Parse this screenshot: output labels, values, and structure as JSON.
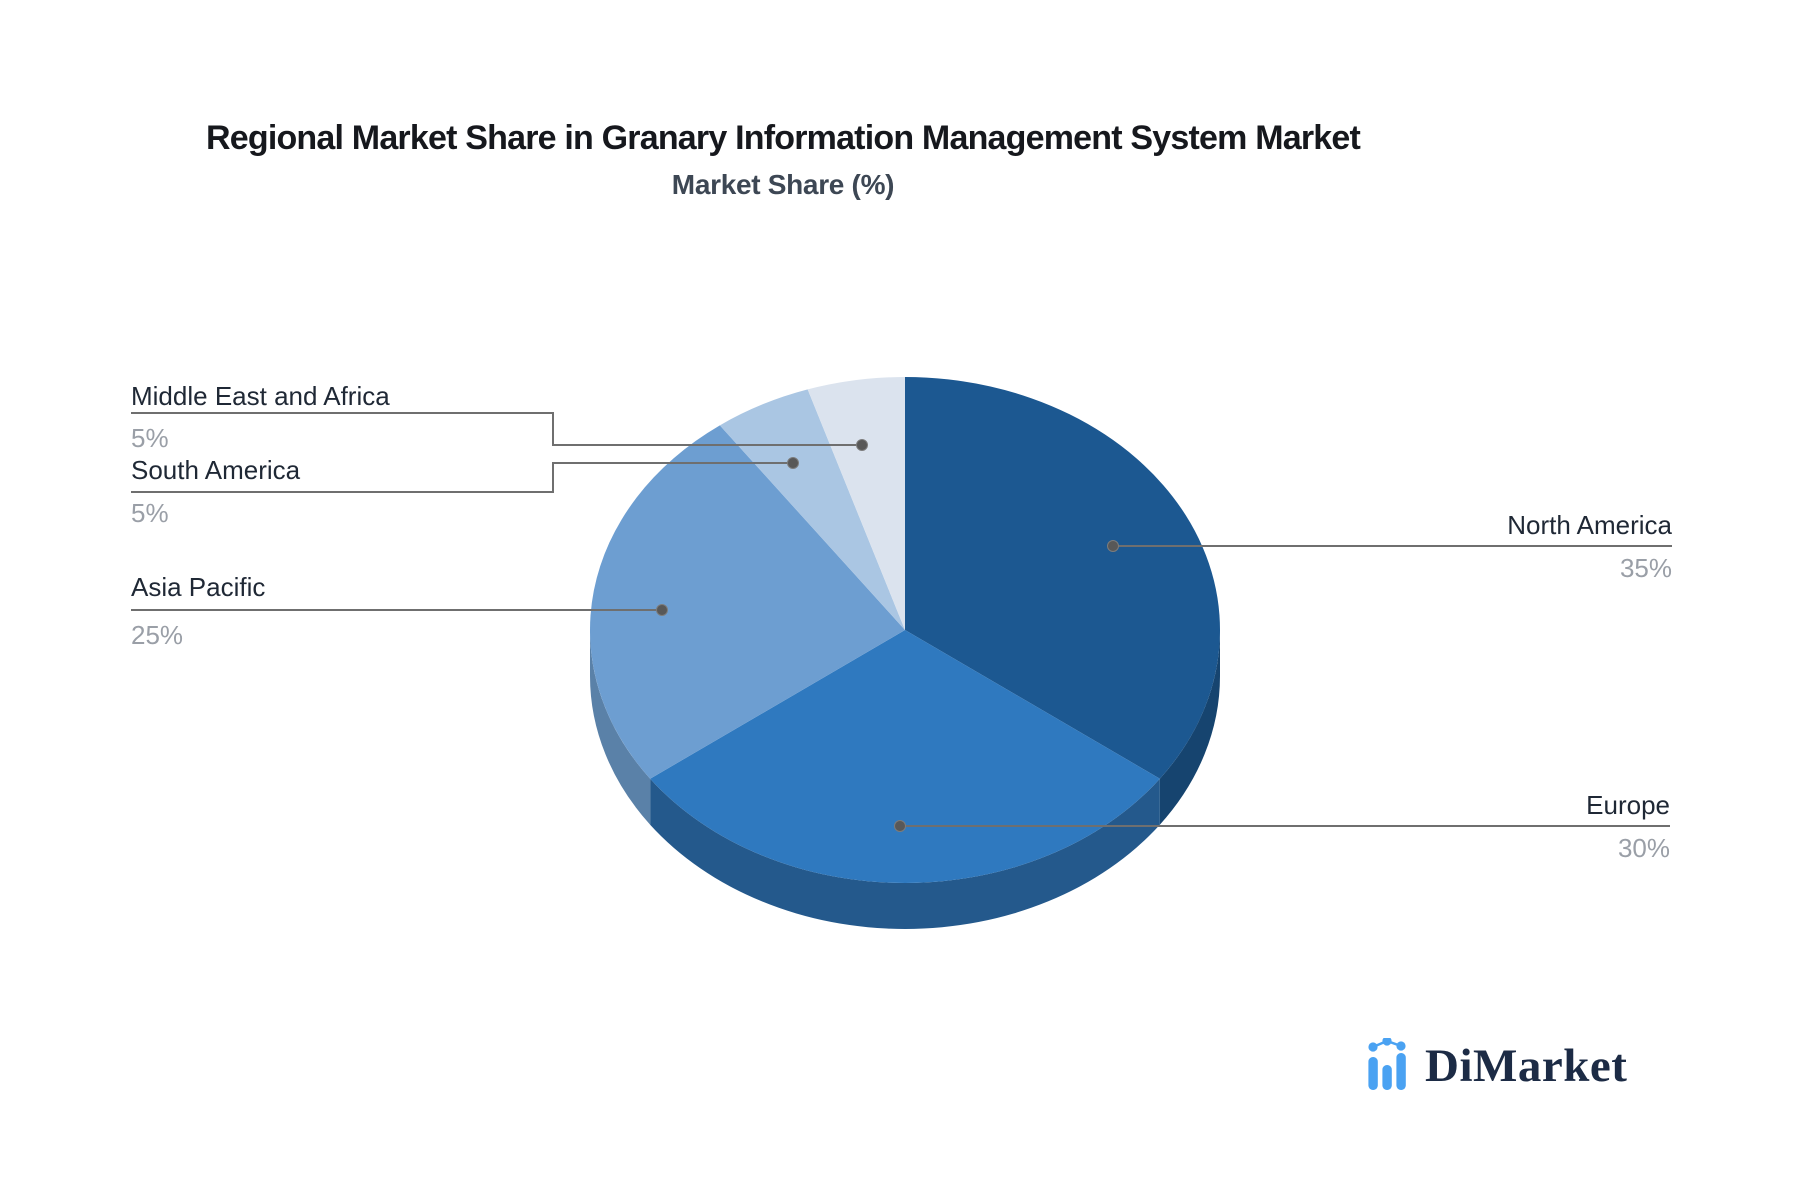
{
  "title": "Regional Market Share in Granary Information Management System Market",
  "subtitle": "Market Share (%)",
  "logo": {
    "text": "DiMarket",
    "icon": "bar-chart-logo-icon",
    "accent_color": "#4aa2f2",
    "text_color": "#1c2b45"
  },
  "chart_data": {
    "type": "pie",
    "title": "Regional Market Share in Granary Information Management System Market",
    "subtitle": "Market Share (%)",
    "unit": "%",
    "style": "3d-pie with outside leader-line labels",
    "start_angle_deg": 0,
    "clockwise": true,
    "label_text_color": "#1f2835",
    "percent_text_color": "#9a9fa7",
    "leader_line_color": "#6f6f6f",
    "segments": [
      {
        "label": "North America",
        "value": 35,
        "pct_label": "35%",
        "color": "#1c5891",
        "side_color": "#16446f"
      },
      {
        "label": "Europe",
        "value": 30,
        "pct_label": "30%",
        "color": "#2f79bf",
        "side_color": "#24598c"
      },
      {
        "label": "Asia Pacific",
        "value": 25,
        "pct_label": "25%",
        "color": "#6d9ed1",
        "side_color": "#5a81a8"
      },
      {
        "label": "South America",
        "value": 5,
        "pct_label": "5%",
        "color": "#aac6e3",
        "side_color": "#8ba4bd"
      },
      {
        "label": "Middle East and Africa",
        "value": 5,
        "pct_label": "5%",
        "color": "#dbe3ee",
        "side_color": "#b8c2d0"
      }
    ]
  }
}
